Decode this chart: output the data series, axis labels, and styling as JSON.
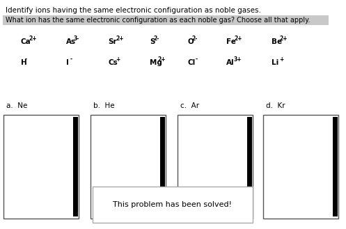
{
  "title_line1": "Identify ions having the same electronic configuration as noble gases.",
  "title_line2": "What ion has the same electronic configuration as each noble gas? Choose all that apply.",
  "row1_base": [
    "Ca",
    "As",
    "Sr",
    "S",
    "O",
    "Fe",
    "Be"
  ],
  "row1_sup": [
    "2+",
    "3-",
    "2+",
    "2-",
    "2-",
    "2+",
    "2+"
  ],
  "row2_base": [
    "H",
    "I",
    "Cs",
    "Mg",
    "Cl",
    "Al",
    "Li"
  ],
  "row2_sup": [
    "-",
    "-",
    "+",
    "2+",
    "-",
    "3+",
    "+"
  ],
  "box_labels": [
    "a.  Ne",
    "b.  He",
    "c.  Ar",
    "d.  Kr"
  ],
  "highlight_color": "#c8c8c8",
  "bg_color": "#ffffff",
  "overlay_text": "This problem has been solved!"
}
